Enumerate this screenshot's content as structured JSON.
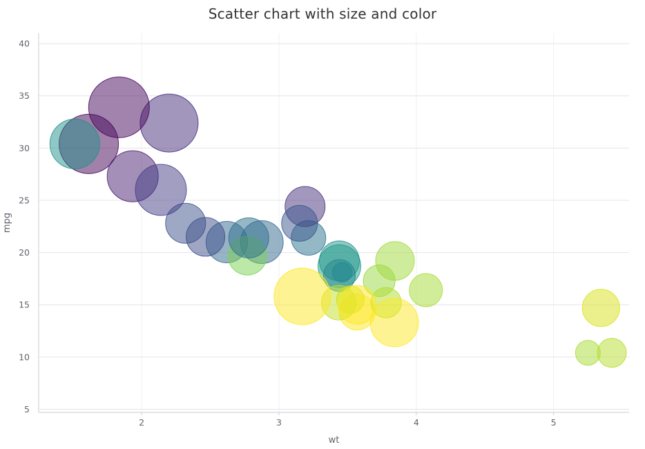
{
  "chart_data": {
    "type": "scatter",
    "title": "Scatter chart with size and color",
    "xlabel": "wt",
    "ylabel": "mpg",
    "xlim": [
      1.25,
      5.55
    ],
    "ylim": [
      4.7,
      41.0
    ],
    "x_ticks": [
      2,
      3,
      4,
      5
    ],
    "y_ticks": [
      5,
      10,
      15,
      20,
      25,
      30,
      35,
      40
    ],
    "grid": true,
    "legend_position": "none",
    "points": [
      {
        "x": 2.62,
        "y": 21.0,
        "r": 30,
        "color": "#31688e"
      },
      {
        "x": 2.875,
        "y": 21.0,
        "r": 31,
        "color": "#31688e"
      },
      {
        "x": 2.32,
        "y": 22.8,
        "r": 29,
        "color": "#3b528b"
      },
      {
        "x": 3.215,
        "y": 21.4,
        "r": 25,
        "color": "#2c728e"
      },
      {
        "x": 3.44,
        "y": 18.7,
        "r": 31,
        "color": "#1fa187"
      },
      {
        "x": 3.46,
        "y": 18.1,
        "r": 14,
        "color": "#277f8e"
      },
      {
        "x": 3.57,
        "y": 14.3,
        "r": 26,
        "color": "#fde725"
      },
      {
        "x": 3.19,
        "y": 24.4,
        "r": 29,
        "color": "#46327e"
      },
      {
        "x": 3.15,
        "y": 22.8,
        "r": 26,
        "color": "#39568c"
      },
      {
        "x": 3.44,
        "y": 19.2,
        "r": 29,
        "color": "#21918c"
      },
      {
        "x": 3.44,
        "y": 17.8,
        "r": 23,
        "color": "#24868e"
      },
      {
        "x": 4.07,
        "y": 16.4,
        "r": 24,
        "color": "#a5db36"
      },
      {
        "x": 3.73,
        "y": 17.3,
        "r": 23,
        "color": "#98d83e"
      },
      {
        "x": 3.78,
        "y": 15.2,
        "r": 22,
        "color": "#b2dd2d"
      },
      {
        "x": 5.25,
        "y": 10.4,
        "r": 18,
        "color": "#a8db34"
      },
      {
        "x": 5.424,
        "y": 10.4,
        "r": 21,
        "color": "#b5de2b"
      },
      {
        "x": 5.345,
        "y": 14.7,
        "r": 27,
        "color": "#d8e219"
      },
      {
        "x": 2.2,
        "y": 32.4,
        "r": 42,
        "color": "#472d7b"
      },
      {
        "x": 1.615,
        "y": 30.4,
        "r": 43,
        "color": "#440154"
      },
      {
        "x": 1.835,
        "y": 33.9,
        "r": 44,
        "color": "#46085c"
      },
      {
        "x": 2.465,
        "y": 21.5,
        "r": 28,
        "color": "#3d4e8a"
      },
      {
        "x": 3.52,
        "y": 15.5,
        "r": 20,
        "color": "#d0e11c"
      },
      {
        "x": 3.435,
        "y": 15.2,
        "r": 25,
        "color": "#c2df23"
      },
      {
        "x": 3.84,
        "y": 13.3,
        "r": 35,
        "color": "#fde725"
      },
      {
        "x": 3.845,
        "y": 19.2,
        "r": 28,
        "color": "#a0da39"
      },
      {
        "x": 1.935,
        "y": 27.3,
        "r": 37,
        "color": "#481f70"
      },
      {
        "x": 2.14,
        "y": 26.0,
        "r": 37,
        "color": "#433e85"
      },
      {
        "x": 1.513,
        "y": 30.4,
        "r": 36,
        "color": "#21918c"
      },
      {
        "x": 3.17,
        "y": 15.8,
        "r": 41,
        "color": "#fde725"
      },
      {
        "x": 2.77,
        "y": 19.7,
        "r": 28,
        "color": "#7ad151"
      },
      {
        "x": 3.57,
        "y": 15.0,
        "r": 28,
        "color": "#fde725"
      },
      {
        "x": 2.78,
        "y": 21.4,
        "r": 29,
        "color": "#2e6f8e"
      }
    ]
  }
}
